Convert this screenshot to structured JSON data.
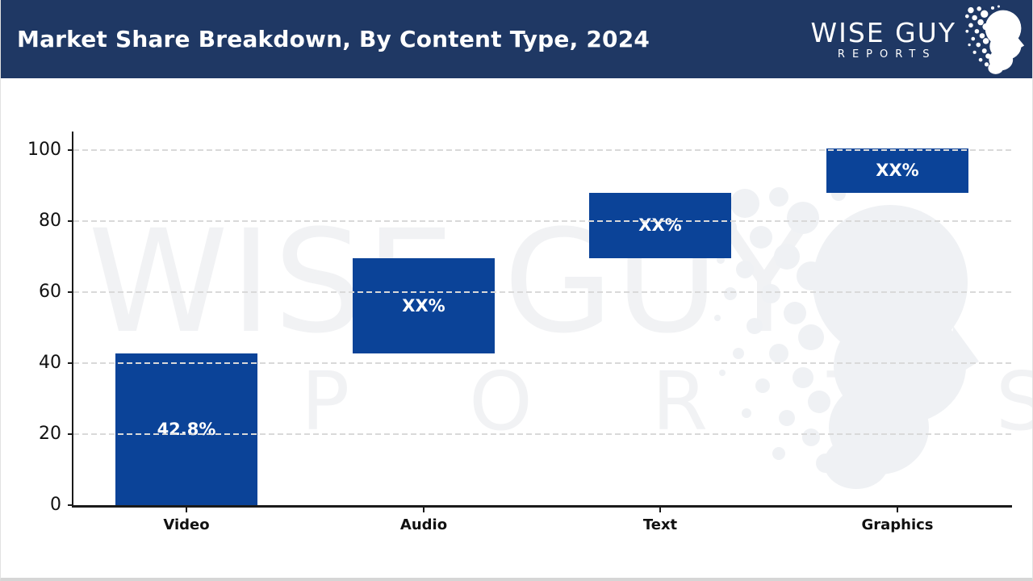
{
  "header": {
    "title": "Market Share Breakdown, By Content Type, 2024",
    "bg_color": "#1f3864",
    "logo": {
      "line1": "WISE GUY",
      "line2": "REPORTS"
    }
  },
  "watermark": {
    "line1": "WISE GUY",
    "line2": "P O R T S"
  },
  "chart_data": {
    "type": "bar",
    "subtype": "waterfall",
    "title": "Market Share Breakdown, By Content Type, 2024",
    "xlabel": "",
    "ylabel": "",
    "categories": [
      "Video",
      "Audio",
      "Text",
      "Graphics"
    ],
    "bar_labels": [
      "42.8%",
      "XX%",
      "XX%",
      "XX%"
    ],
    "values": [
      42.8,
      26.8,
      18.4,
      12.5
    ],
    "segments": [
      {
        "start": 0,
        "end": 42.8
      },
      {
        "start": 42.8,
        "end": 69.6
      },
      {
        "start": 69.6,
        "end": 88.0
      },
      {
        "start": 88.0,
        "end": 100.5
      }
    ],
    "yticks": [
      0,
      20,
      40,
      60,
      80,
      100
    ],
    "ylim": [
      0,
      105
    ],
    "grid": true,
    "grid_style": "dashed",
    "bar_color": "#0b4398",
    "axis_color": "#1a1a1a",
    "grid_color": "#d9d9d9"
  }
}
